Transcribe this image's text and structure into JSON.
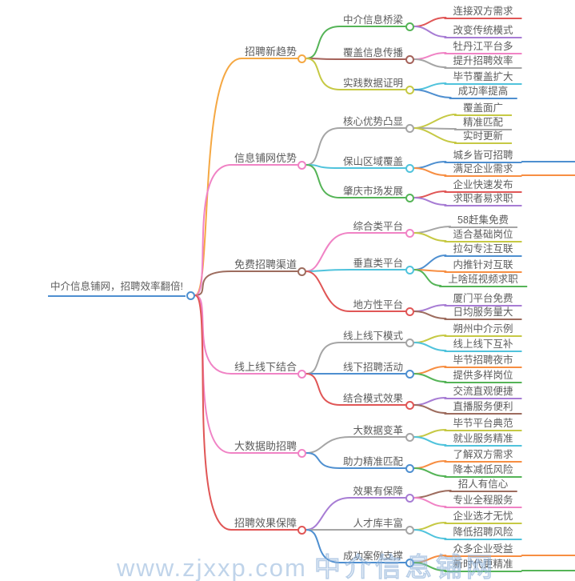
{
  "root": {
    "label": "中介信息铺网，招聘效率翻倍!",
    "color": "#4E8FD0"
  },
  "watermark": {
    "url_part": "www.zjxxp.com",
    "brand_part": "中介信息铺网"
  },
  "colors": {
    "blue": "#4E8FD0",
    "orange_branch": "#F5A843",
    "orange": "#F78E42",
    "green": "#55B457",
    "maroon": "#A5625A",
    "olive": "#C6C944",
    "red": "#E05656",
    "purple": "#A77CD4",
    "pink": "#F083C5",
    "gray": "#A5A5A5",
    "cyan": "#50C3DC",
    "brown": "#9D6C5E",
    "text": "#5c5c5c"
  },
  "branches": [
    {
      "label": "招聘新趋势",
      "color": "#F5A843",
      "children": [
        {
          "label": "中介信息桥梁",
          "color": "#55B457",
          "children": [
            {
              "label": "连接双方需求",
              "color": "#E05656"
            },
            {
              "label": "改变传统模式",
              "color": "#A77CD4"
            }
          ]
        },
        {
          "label": "覆盖信息传播",
          "color": "#A5625A",
          "children": [
            {
              "label": "牡丹江平台多",
              "color": "#F083C5"
            },
            {
              "label": "提升招聘效率",
              "color": "#A5A5A5"
            }
          ]
        },
        {
          "label": "实践数据证明",
          "color": "#C6C944",
          "children": [
            {
              "label": "毕节覆盖扩大",
              "color": "#50C3DC"
            },
            {
              "label": "成功率提高",
              "color": "#4E8FD0"
            }
          ]
        }
      ]
    },
    {
      "label": "信息铺网优势",
      "color": "#F083C5",
      "children": [
        {
          "label": "核心优势凸显",
          "color": "#A5A5A5",
          "children": [
            {
              "label": "覆盖面广",
              "color": "#C6C944"
            },
            {
              "label": "精准匹配",
              "color": "#A5A5A5"
            },
            {
              "label": "实时更新",
              "color": "#C6C944"
            }
          ]
        },
        {
          "label": "保山区域覆盖",
          "color": "#50C3DC",
          "children": [
            {
              "label": "城乡皆可招聘",
              "color": "#4E8FD0"
            },
            {
              "label": "满足企业需求",
              "color": "#F78E42"
            }
          ]
        },
        {
          "label": "肇庆市场发展",
          "color": "#55B457",
          "children": [
            {
              "label": "企业快速发布",
              "color": "#E05656"
            },
            {
              "label": "求职者易求职",
              "color": "#A77CD4"
            }
          ]
        }
      ]
    },
    {
      "label": "免费招聘渠道",
      "color": "#9D6C5E",
      "children": [
        {
          "label": "综合类平台",
          "color": "#F083C5",
          "children": [
            {
              "label": "58赶集免费",
              "color": "#A5A5A5"
            },
            {
              "label": "适合基础岗位",
              "color": "#C6C944"
            }
          ]
        },
        {
          "label": "垂直类平台",
          "color": "#50C3DC",
          "children": [
            {
              "label": "拉勾专注互联",
              "color": "#4E8FD0"
            },
            {
              "label": "内推针对互联",
              "color": "#F78E42"
            },
            {
              "label": "上啥班视频求职",
              "color": "#55B457"
            }
          ]
        },
        {
          "label": "地方性平台",
          "color": "#E05656",
          "children": [
            {
              "label": "厦门平台免费",
              "color": "#A77CD4"
            },
            {
              "label": "日均服务量大",
              "color": "#9D6C5E"
            }
          ]
        }
      ]
    },
    {
      "label": "线上线下结合",
      "color": "#F083C5",
      "children": [
        {
          "label": "线上线下模式",
          "color": "#A5A5A5",
          "children": [
            {
              "label": "朔州中介示例",
              "color": "#C6C944"
            },
            {
              "label": "线上线下互补",
              "color": "#50C3DC"
            }
          ]
        },
        {
          "label": "线下招聘活动",
          "color": "#4E8FD0",
          "children": [
            {
              "label": "毕节招聘夜市",
              "color": "#F78E42"
            },
            {
              "label": "提供多样岗位",
              "color": "#55B457"
            }
          ]
        },
        {
          "label": "结合模式效果",
          "color": "#E05656",
          "children": [
            {
              "label": "交流直观便捷",
              "color": "#A77CD4"
            },
            {
              "label": "直播服务便利",
              "color": "#9D6C5E"
            }
          ]
        }
      ]
    },
    {
      "label": "大数据助招聘",
      "color": "#F083C5",
      "children": [
        {
          "label": "大数据变革",
          "color": "#A5A5A5",
          "children": [
            {
              "label": "毕节平台典范",
              "color": "#C6C944"
            },
            {
              "label": "就业服务精准",
              "color": "#50C3DC"
            }
          ]
        },
        {
          "label": "助力精准匹配",
          "color": "#4E8FD0",
          "children": [
            {
              "label": "了解双方需求",
              "color": "#F78E42"
            },
            {
              "label": "降本减低风险",
              "color": "#55B457"
            }
          ]
        }
      ]
    },
    {
      "label": "招聘效果保障",
      "color": "#E05656",
      "children": [
        {
          "label": "效果有保障",
          "color": "#A77CD4",
          "children": [
            {
              "label": "招人有信心",
              "color": "#9D6C5E"
            },
            {
              "label": "专业全程服务",
              "color": "#F083C5"
            }
          ]
        },
        {
          "label": "人才库丰富",
          "color": "#A5A5A5",
          "children": [
            {
              "label": "企业选才无忧",
              "color": "#C6C944"
            },
            {
              "label": "降低招聘风险",
              "color": "#50C3DC"
            }
          ]
        },
        {
          "label": "成功案例支撑",
          "color": "#4E8FD0",
          "children": [
            {
              "label": "众多企业受益",
              "color": "#F78E42"
            },
            {
              "label": "新时代更精准",
              "color": "#55B457"
            }
          ]
        }
      ]
    }
  ]
}
